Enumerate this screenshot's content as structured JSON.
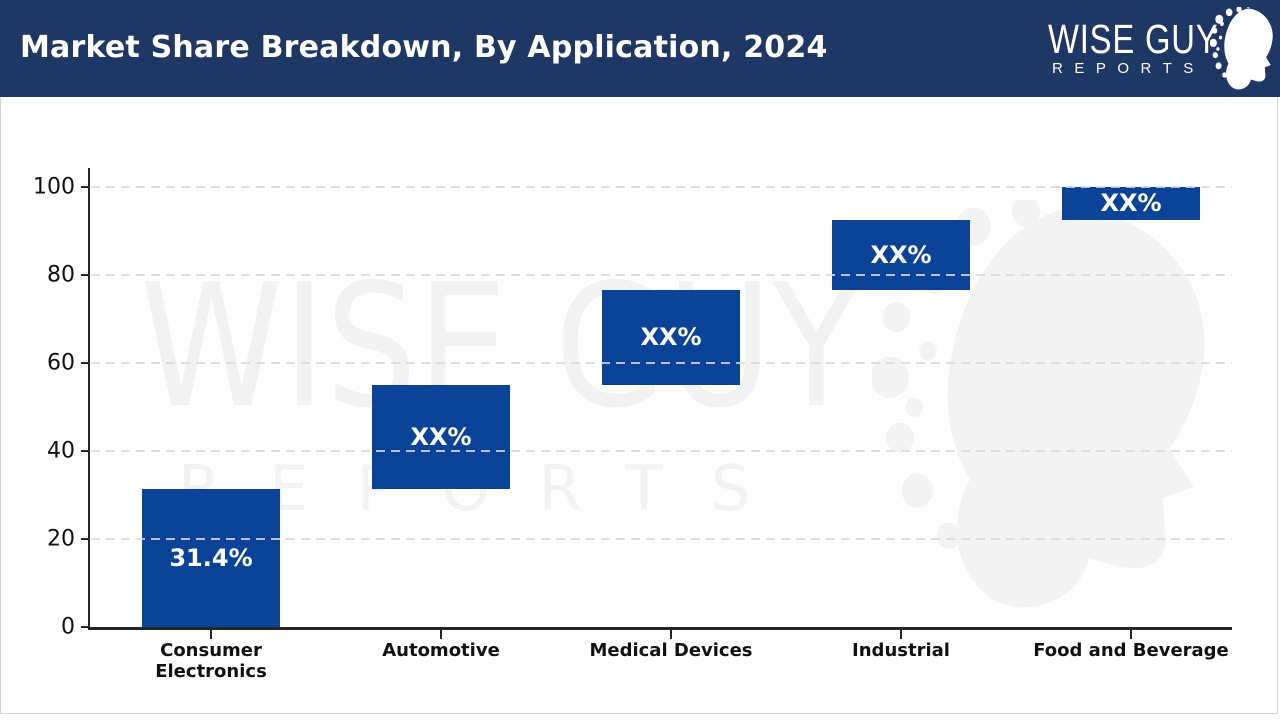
{
  "header": {
    "title": "Market Share Breakdown, By Application, 2024",
    "logo": {
      "brand": "WISE GUY",
      "sub": "REPORTS"
    }
  },
  "watermark": {
    "brand": "WISE GUY",
    "sub": "REPORTS"
  },
  "colors": {
    "header_bg": "#1f3765",
    "bar_blue": "#0b4399",
    "axis": "#262626",
    "gridline": "#d8d8d8",
    "label_text": "#111111",
    "value_label": "#ffffff",
    "watermark_gray": "#f2f2f3",
    "card_border": "#d3d3d3"
  },
  "chart_data": {
    "type": "bar",
    "subtype": "waterfall",
    "title": "Market Share Breakdown, By Application, 2024",
    "categories": [
      "Consumer Electronics",
      "Automotive",
      "Medical Devices",
      "Industrial",
      "Food and Beverage"
    ],
    "segments": [
      {
        "category": "Consumer Electronics",
        "tick_label": "Consumer\nElectronics",
        "start": 0,
        "end": 31.4,
        "label": "31.4%"
      },
      {
        "category": "Automotive",
        "tick_label": "Automotive",
        "start": 31.4,
        "end": 55.0,
        "label": "XX%"
      },
      {
        "category": "Medical Devices",
        "tick_label": "Medical Devices",
        "start": 55.0,
        "end": 76.5,
        "label": "XX%"
      },
      {
        "category": "Industrial",
        "tick_label": "Industrial",
        "start": 76.5,
        "end": 92.3,
        "label": "XX%"
      },
      {
        "category": "Food and Beverage",
        "tick_label": "Food and Beverage",
        "start": 92.3,
        "end": 100.0,
        "label": "XX%"
      }
    ],
    "y_ticks": [
      0,
      20,
      40,
      60,
      80,
      100
    ],
    "ylim": [
      0,
      104
    ],
    "xlabel": "",
    "ylabel": "",
    "grid": "horizontal-dashed",
    "legend": "none",
    "bar_color": "#0b4399",
    "value_label_color": "#ffffff"
  }
}
